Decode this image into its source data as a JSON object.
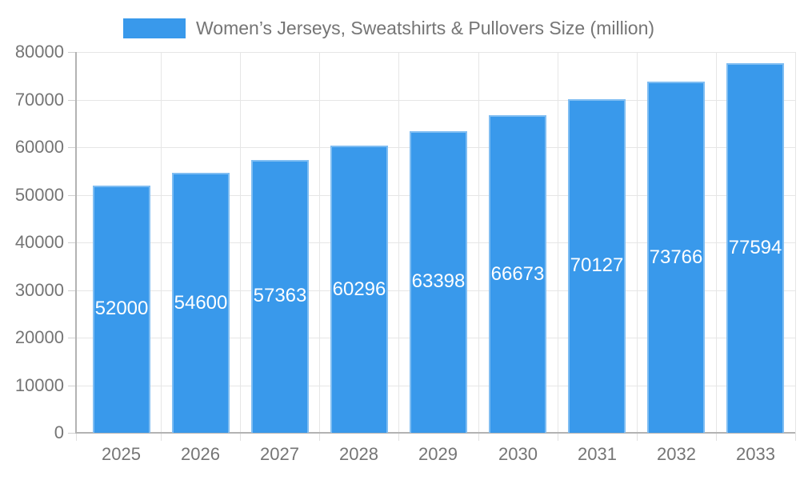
{
  "chart_data": {
    "type": "bar",
    "title": "Women’s Jerseys, Sweatshirts & Pullovers Size (million)",
    "categories": [
      "2025",
      "2026",
      "2027",
      "2028",
      "2029",
      "2030",
      "2031",
      "2032",
      "2033"
    ],
    "series": [
      {
        "name": "Women’s Jerseys, Sweatshirts & Pullovers Size (million)",
        "values": [
          52000,
          54600,
          57363,
          60296,
          63398,
          66673,
          70127,
          73766,
          77594
        ]
      }
    ],
    "value_labels": [
      "52000",
      "54600",
      "57363",
      "60296",
      "63398",
      "66673",
      "70127",
      "73766",
      "77594"
    ],
    "y_tick_labels": [
      "0",
      "10000",
      "20000",
      "30000",
      "40000",
      "50000",
      "60000",
      "70000",
      "80000"
    ],
    "xlabel": "",
    "ylabel": "",
    "ylim": [
      0,
      80000
    ],
    "grid": true,
    "legend_position": "top",
    "value_label_position": "inside-center",
    "colors": {
      "bar": "#3999EB",
      "bar_border": "#7FBDF2",
      "grid": "#E6E6E6",
      "axis": "#B3B3B3",
      "y_tick": "#CFCFCF",
      "x_tick": "#E0E0E0",
      "text": "#757575",
      "value_label": "#FFFFFF",
      "background": "#FFFFFF"
    }
  }
}
